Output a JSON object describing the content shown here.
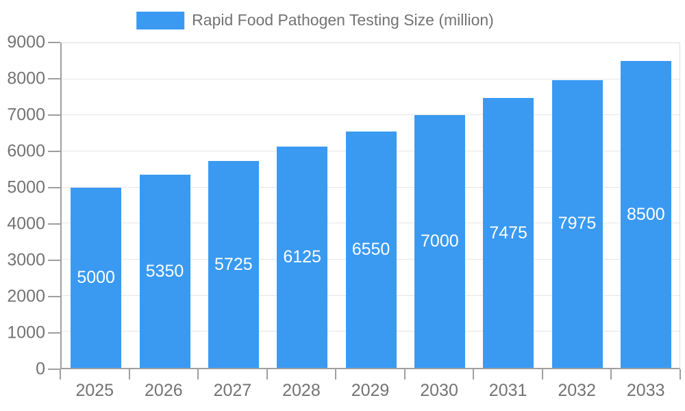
{
  "legend": {
    "label": "Rapid Food Pathogen Testing Size (million)",
    "position": "top"
  },
  "chart_data": {
    "type": "bar",
    "title": "Rapid Food Pathogen Testing Size (million)",
    "series_name": "Rapid Food Pathogen Testing Size (million)",
    "categories": [
      "2025",
      "2026",
      "2027",
      "2028",
      "2029",
      "2030",
      "2031",
      "2032",
      "2033"
    ],
    "values": [
      5000,
      5350,
      5725,
      6125,
      6550,
      7000,
      7475,
      7975,
      8500
    ],
    "value_labels_shown": true,
    "xlabel": "",
    "ylabel": "",
    "ylim": [
      0,
      9000
    ],
    "y_tick_step": 1000,
    "y_tick_labels": [
      "0",
      "1000",
      "2000",
      "3000",
      "4000",
      "5000",
      "6000",
      "7000",
      "8000",
      "9000"
    ],
    "grid": true,
    "legend_position": "top",
    "colors": {
      "bar": "#3a9af2",
      "grid": "#e6e6e6",
      "border": "#dddddd",
      "axis": "#9e9e9e",
      "text": "#737373",
      "value": "#ffffff",
      "bg": "#ffffff"
    }
  }
}
